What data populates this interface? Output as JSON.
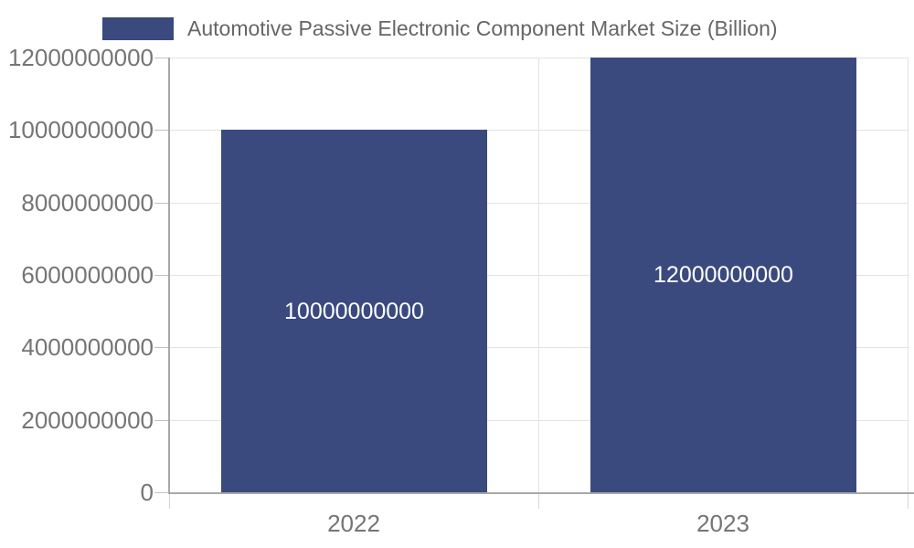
{
  "chart_data": {
    "type": "bar",
    "title": "Automotive Passive Electronic Component Market Size (Billion)",
    "categories": [
      "2022",
      "2023"
    ],
    "values": [
      10000000000,
      12000000000
    ],
    "bar_labels": [
      "10000000000",
      "12000000000"
    ],
    "yticks": [
      0,
      2000000000,
      4000000000,
      6000000000,
      8000000000,
      10000000000,
      12000000000
    ],
    "ytick_labels": [
      "0",
      "2000000000",
      "4000000000",
      "6000000000",
      "8000000000",
      "10000000000",
      "12000000000"
    ],
    "ylim": [
      0,
      12000000000
    ],
    "xlabel": "",
    "ylabel": "",
    "grid": true,
    "legend_position": "top-left",
    "colors": {
      "bar": "#3a4a7e",
      "bar_label_text": "#ffffff",
      "axis_line": "#a8a8a8",
      "gridline": "#e3e3e3",
      "tick_mark": "#c2c2c2",
      "outer_tick_mark": "#d2d6de",
      "tick_label": "#757575",
      "title_text": "#666666",
      "background": "#ffffff"
    }
  }
}
